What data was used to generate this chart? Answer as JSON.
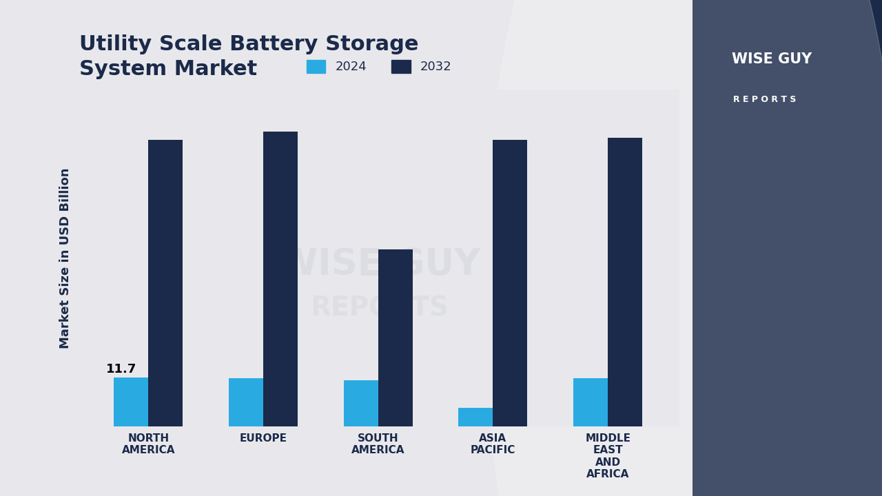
{
  "title": "Utility Scale Battery Storage\nSystem Market",
  "ylabel": "Market Size in USD Billion",
  "categories": [
    "NORTH\nAMERICA",
    "EUROPE",
    "SOUTH\nAMERICA",
    "ASIA\nPACIFIC",
    "MIDDLE\nEAST\nAND\nAFRICA"
  ],
  "values_2024": [
    11.7,
    11.5,
    11.0,
    4.5,
    11.5
  ],
  "values_2032": [
    68.0,
    70.0,
    42.0,
    68.0,
    68.5
  ],
  "color_2024": "#29ABE2",
  "color_2032": "#1B2A4A",
  "annotation_value": "11.7",
  "annotation_region_idx": 0,
  "background_color": "#E8E8EC",
  "plot_bg_color": "#E8E8EC",
  "right_panel_color": "#1B2A4A",
  "title_color": "#1B2A4A",
  "legend_labels": [
    "2024",
    "2032"
  ],
  "bar_width": 0.3,
  "ylim": [
    0,
    80
  ],
  "title_fontsize": 22,
  "ylabel_fontsize": 13,
  "tick_fontsize": 11,
  "legend_fontsize": 13,
  "wiseguy_line1": "WISE GUY",
  "wiseguy_line2": "R E P O R T S"
}
